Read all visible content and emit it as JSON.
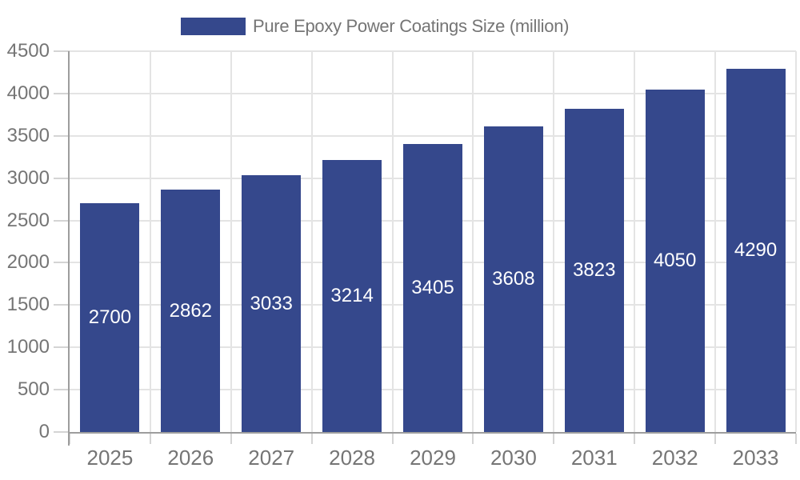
{
  "legend": {
    "label": "Pure Epoxy Power Coatings Size (million)"
  },
  "colors": {
    "bar": "#35488C",
    "bar_label": "#FFFFFF",
    "axis_label": "#757575",
    "legend_label": "#757575",
    "gridline": "#E4E4E4",
    "tick": "#D4D4D4",
    "axis_line": "#9D9D9D",
    "background": "#FFFFFF"
  },
  "chart_data": {
    "type": "bar",
    "title": "Pure Epoxy Power Coatings Size (million)",
    "categories": [
      "2025",
      "2026",
      "2027",
      "2028",
      "2029",
      "2030",
      "2031",
      "2032",
      "2033"
    ],
    "series": [
      {
        "name": "Pure Epoxy Power Coatings Size (million)",
        "values": [
          2700,
          2862,
          3033,
          3214,
          3405,
          3608,
          3823,
          4050,
          4290
        ]
      }
    ],
    "xlabel": "",
    "ylabel": "",
    "ylim": [
      0,
      4500
    ],
    "yticks": [
      0,
      500,
      1000,
      1500,
      2000,
      2500,
      3000,
      3500,
      4000,
      4500
    ],
    "grid": true,
    "legend_position": "top-center",
    "bar_value_labels": true
  }
}
